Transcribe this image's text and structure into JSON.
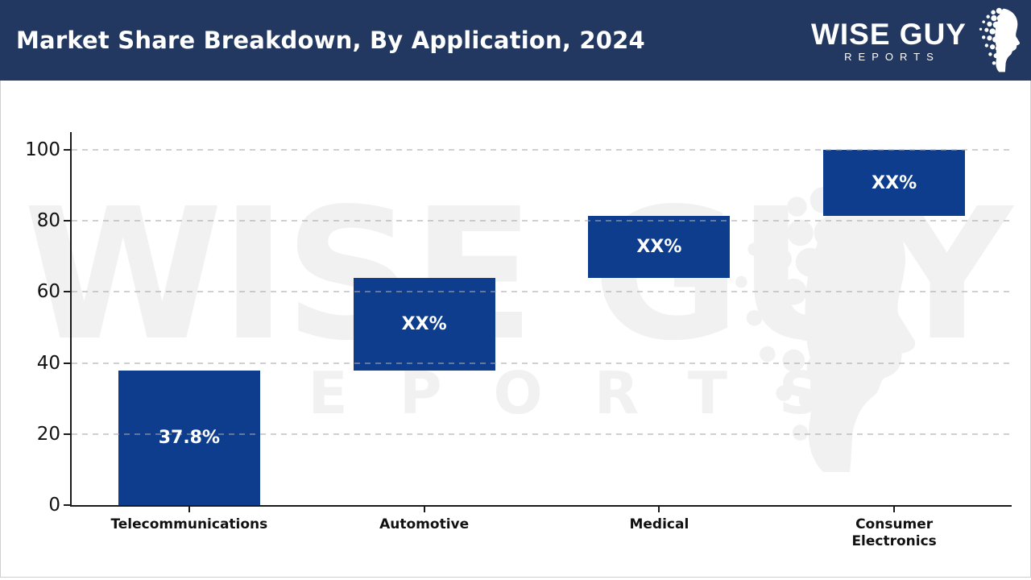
{
  "header": {
    "title": "Market Share Breakdown, By Application, 2024",
    "logo": {
      "name_line": "WISE GUY",
      "sub_line": "REPORTS"
    }
  },
  "watermark": {
    "name_line": "WISE GUY",
    "sub_line": "REPORTS"
  },
  "colors": {
    "header_bg": "#223860",
    "bar_fill": "#0d3d8c",
    "bar_label_text": "#ffffff",
    "axis": "#1a1a1a",
    "grid": "#aaaaaa",
    "tick_label": "#111111",
    "watermark": "#f1f1f1"
  },
  "chart_data": {
    "type": "bar",
    "subtype": "waterfall",
    "title": "Market Share Breakdown, By Application, 2024",
    "xlabel": "",
    "ylabel": "",
    "ylim": [
      0,
      105
    ],
    "yticks": [
      0,
      20,
      40,
      60,
      80,
      100
    ],
    "grid": "horizontal-dashed-over-bars",
    "legend": "none",
    "categories": [
      "Telecommunications",
      "Automotive",
      "Medical",
      "Consumer\nElectronics"
    ],
    "bars": [
      {
        "category": "Telecommunications",
        "start": 0,
        "end": 37.8,
        "label": "37.8%"
      },
      {
        "category": "Automotive",
        "start": 37.8,
        "end": 64,
        "label": "XX%"
      },
      {
        "category": "Medical",
        "start": 64,
        "end": 81.4,
        "label": "XX%"
      },
      {
        "category": "Consumer Electronics",
        "start": 81.4,
        "end": 100,
        "label": "XX%"
      }
    ]
  }
}
